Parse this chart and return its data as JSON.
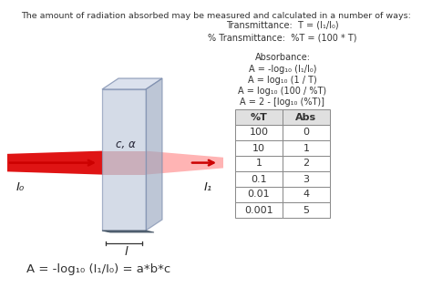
{
  "title": "The amount of radiation absorbed may be measured and calculated in a number of ways:",
  "transmittance_line1": "Transmittance:  T = (I₁/I₀)",
  "transmittance_line2": "% Transmittance:  %T = (100 * T)",
  "absorbance_title": "Absorbance:",
  "absorbance_eq1": "A = -log₁₀ (I₁/I₀)",
  "absorbance_eq2": "A = log₁₀ (1 / T)",
  "absorbance_eq3": "A = log₁₀ (100 / %T)",
  "absorbance_eq4": "A = 2 - [log₁₀ (%T)]",
  "bottom_eq": "A = -log₁₀ (I₁/I₀) = a*b*c",
  "table_headers": [
    "%T",
    "Abs"
  ],
  "table_data": [
    [
      "100",
      "0"
    ],
    [
      "10",
      "1"
    ],
    [
      "1",
      "2"
    ],
    [
      "0.1",
      "3"
    ],
    [
      "0.01",
      "4"
    ],
    [
      "0.001",
      "5"
    ]
  ],
  "text_color": "#333333",
  "cuvette_front_color": "#b8c4d8",
  "cuvette_top_color": "#d0d8e8",
  "cuvette_right_color": "#9aa8c0",
  "cuvette_alpha": 0.6,
  "beam_left_color": "#dd0000",
  "beam_right_color": "#ffaaaa",
  "arrow_color": "#cc0000",
  "label_I0": "I₀",
  "label_I1": "I₁",
  "label_ca": "c, α",
  "label_l": "l",
  "table_header_bg": "#e0e0e0",
  "table_row_bg": "#ffffff",
  "table_border": "#888888"
}
